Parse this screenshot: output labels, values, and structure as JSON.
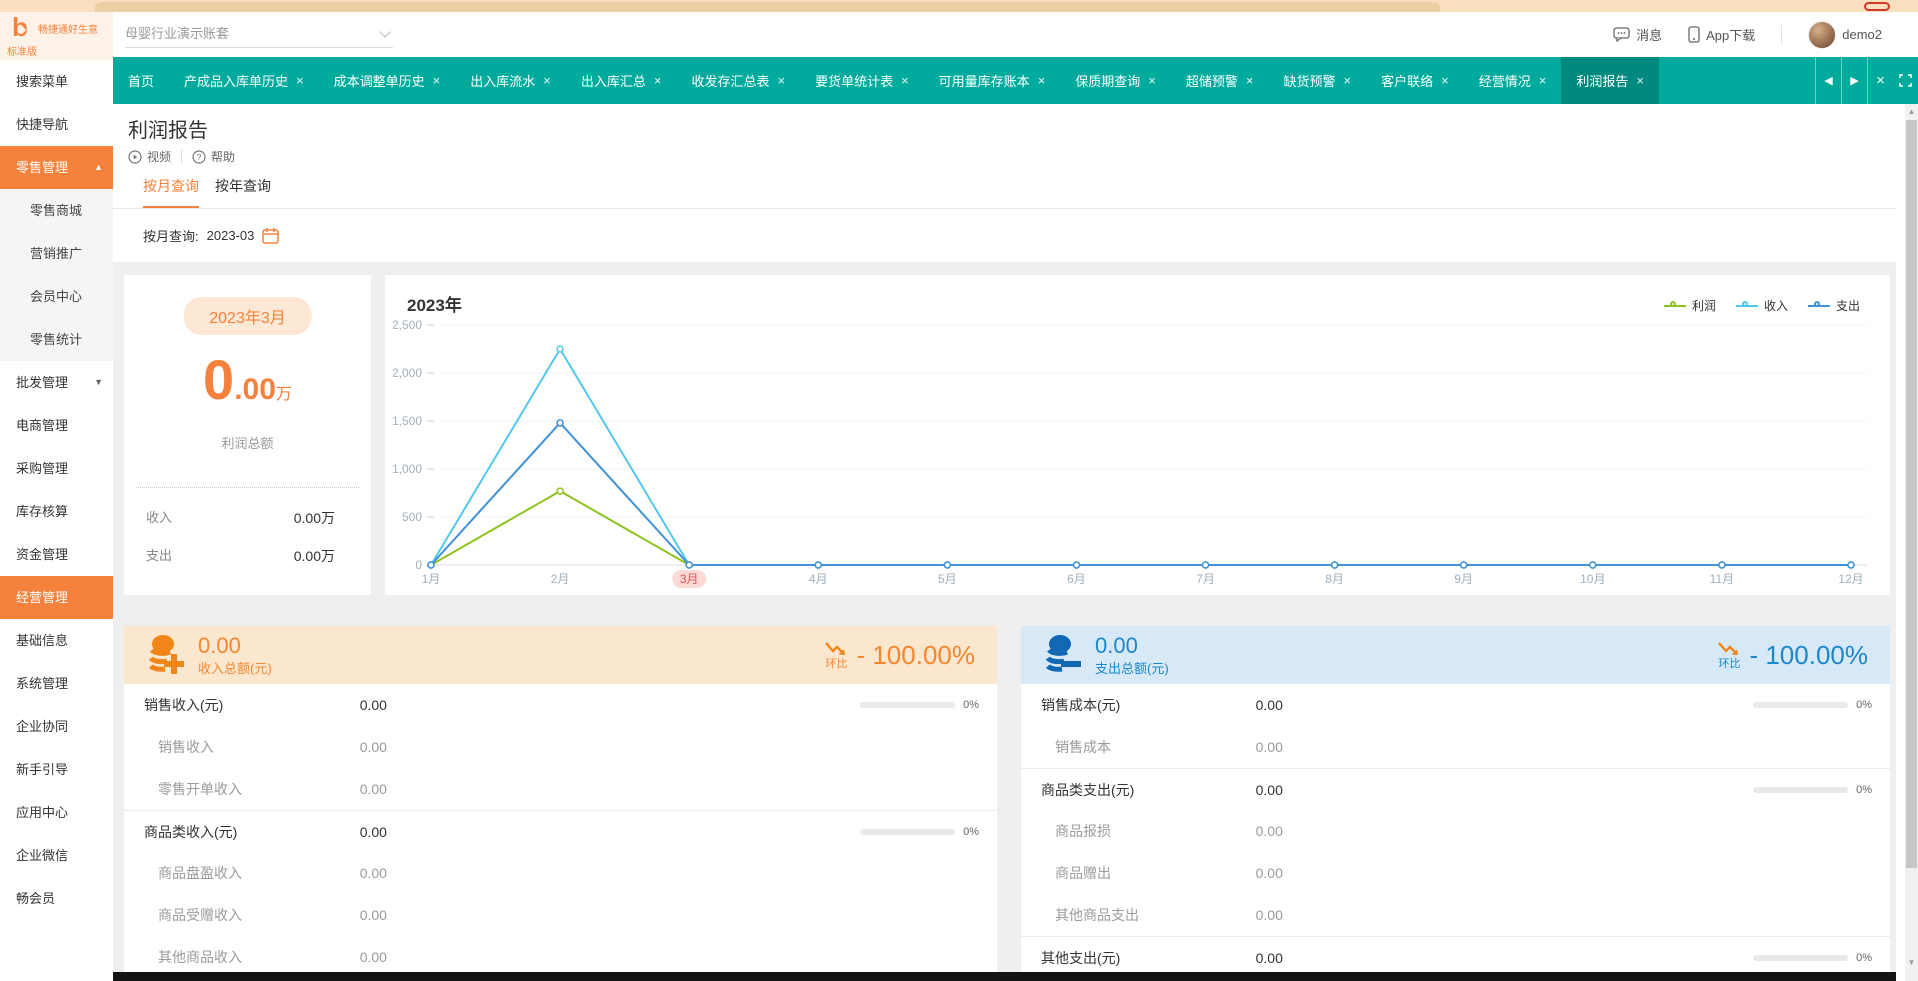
{
  "brand": {
    "name": "畅捷通好生意",
    "edition": "标准版"
  },
  "header": {
    "account": "母婴行业演示账套",
    "messages": "消息",
    "app_download": "App下载",
    "user": "demo2"
  },
  "sidebar": {
    "items": [
      {
        "label": "搜索菜单",
        "cls": "top",
        "arrow": ""
      },
      {
        "label": "快捷导航",
        "cls": "top",
        "arrow": ""
      },
      {
        "label": "零售管理",
        "cls": "top active",
        "arrow": "▲"
      },
      {
        "label": "零售商城",
        "cls": "sub",
        "arrow": ""
      },
      {
        "label": "营销推广",
        "cls": "sub",
        "arrow": ""
      },
      {
        "label": "会员中心",
        "cls": "sub",
        "arrow": ""
      },
      {
        "label": "零售统计",
        "cls": "sub",
        "arrow": ""
      },
      {
        "label": "批发管理",
        "cls": "top",
        "arrow": "▼"
      },
      {
        "label": "电商管理",
        "cls": "top",
        "arrow": ""
      },
      {
        "label": "采购管理",
        "cls": "top",
        "arrow": ""
      },
      {
        "label": "库存核算",
        "cls": "top",
        "arrow": ""
      },
      {
        "label": "资金管理",
        "cls": "top",
        "arrow": ""
      },
      {
        "label": "经营管理",
        "cls": "top active",
        "arrow": ""
      },
      {
        "label": "基础信息",
        "cls": "top",
        "arrow": ""
      },
      {
        "label": "系统管理",
        "cls": "top",
        "arrow": ""
      },
      {
        "label": "企业协同",
        "cls": "top",
        "arrow": ""
      },
      {
        "label": "新手引导",
        "cls": "top",
        "arrow": ""
      },
      {
        "label": "应用中心",
        "cls": "top",
        "arrow": ""
      },
      {
        "label": "企业微信",
        "cls": "top",
        "arrow": ""
      },
      {
        "label": "畅会员",
        "cls": "top",
        "arrow": ""
      }
    ]
  },
  "tabbar": {
    "close_glyph": "×",
    "prev_icon": "◀",
    "next_icon": "▶",
    "close_all_icon": "×",
    "tabs": [
      {
        "label": "首页",
        "closable": false
      },
      {
        "label": "产成品入库单历史",
        "closable": true
      },
      {
        "label": "成本调整单历史",
        "closable": true
      },
      {
        "label": "出入库流水",
        "closable": true
      },
      {
        "label": "出入库汇总",
        "closable": true
      },
      {
        "label": "收发存汇总表",
        "closable": true
      },
      {
        "label": "要货单统计表",
        "closable": true
      },
      {
        "label": "可用量库存账本",
        "closable": true
      },
      {
        "label": "保质期查询",
        "closable": true
      },
      {
        "label": "超储预警",
        "closable": true
      },
      {
        "label": "缺货预警",
        "closable": true
      },
      {
        "label": "客户联络",
        "closable": true
      },
      {
        "label": "经营情况",
        "closable": true
      },
      {
        "label": "利润报告",
        "closable": true,
        "cls": "active"
      }
    ]
  },
  "page": {
    "title": "利润报告",
    "video_label": "视频",
    "help_label": "帮助",
    "subtabs": [
      {
        "label": "按月查询",
        "cls": "active"
      },
      {
        "label": "按年查询"
      }
    ],
    "filter_label": "按月查询:",
    "filter_value": "2023-03"
  },
  "summary_card": {
    "period": "2023年3月",
    "amount_int": "0",
    "amount_frac": ".00",
    "amount_unit": "万",
    "amount_label": "利润总额",
    "rows": [
      {
        "label": "收入",
        "value": "0.00万"
      },
      {
        "label": "支出",
        "value": "0.00万"
      }
    ]
  },
  "chart_data": {
    "type": "line",
    "title": "2023年",
    "x": [
      "1月",
      "2月",
      "3月",
      "4月",
      "5月",
      "6月",
      "7月",
      "8月",
      "9月",
      "10月",
      "11月",
      "12月"
    ],
    "highlight_x": "3月",
    "highlight_color": "#e05656",
    "ylim": [
      0,
      2500
    ],
    "yticks": [
      0,
      500,
      1000,
      1500,
      2000,
      2500
    ],
    "grid": true,
    "legend_position": "top-right",
    "series": [
      {
        "name": "利润",
        "color": "#8fc31f",
        "values": [
          0,
          770,
          0,
          0,
          0,
          0,
          0,
          0,
          0,
          0,
          0,
          0
        ]
      },
      {
        "name": "收入",
        "color": "#54c8ea",
        "values": [
          0,
          2250,
          0,
          0,
          0,
          0,
          0,
          0,
          0,
          0,
          0,
          0
        ]
      },
      {
        "name": "支出",
        "color": "#4092d8",
        "values": [
          0,
          1480,
          0,
          0,
          0,
          0,
          0,
          0,
          0,
          0,
          0,
          0
        ]
      }
    ]
  },
  "income_card": {
    "value": "0.00",
    "label": "收入总额(元)",
    "ratio_label": "环比",
    "ratio_value": "- 100.00%",
    "rows": [
      {
        "label": "销售收入(元)",
        "value": "0.00",
        "percent": "0%",
        "cls": "main",
        "bar": true
      },
      {
        "label": "销售收入",
        "value": "0.00",
        "cls": "sub"
      },
      {
        "label": "零售开单收入",
        "value": "0.00",
        "cls": "sub"
      },
      {
        "label": "商品类收入(元)",
        "value": "0.00",
        "percent": "0%",
        "cls": "main group",
        "bar": true
      },
      {
        "label": "商品盘盈收入",
        "value": "0.00",
        "cls": "sub"
      },
      {
        "label": "商品受赠收入",
        "value": "0.00",
        "cls": "sub"
      },
      {
        "label": "其他商品收入",
        "value": "0.00",
        "cls": "sub"
      }
    ]
  },
  "expense_card": {
    "value": "0.00",
    "label": "支出总额(元)",
    "ratio_label": "环比",
    "ratio_value": "- 100.00%",
    "rows": [
      {
        "label": "销售成本(元)",
        "value": "0.00",
        "percent": "0%",
        "cls": "main",
        "bar": true
      },
      {
        "label": "销售成本",
        "value": "0.00",
        "cls": "sub"
      },
      {
        "label": "商品类支出(元)",
        "value": "0.00",
        "percent": "0%",
        "cls": "main group",
        "bar": true
      },
      {
        "label": "商品报损",
        "value": "0.00",
        "cls": "sub"
      },
      {
        "label": "商品赠出",
        "value": "0.00",
        "cls": "sub"
      },
      {
        "label": "其他商品支出",
        "value": "0.00",
        "cls": "sub"
      },
      {
        "label": "其他支出(元)",
        "value": "0.00",
        "percent": "0%",
        "cls": "main group",
        "bar": true
      }
    ]
  },
  "scrollbar": {
    "up": "▲",
    "down": "▼"
  }
}
